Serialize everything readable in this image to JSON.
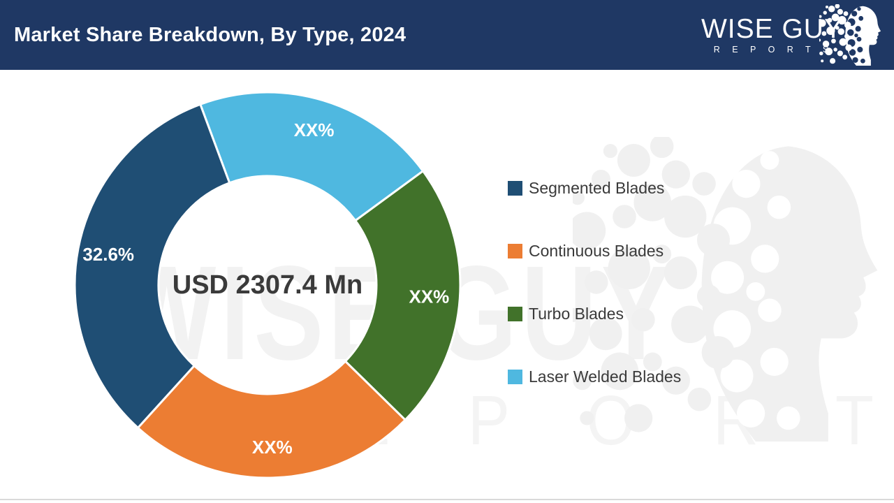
{
  "header": {
    "title": "Market Share Breakdown, By Type, 2024",
    "logo": {
      "line1": "WISE GUY",
      "line2": "R E P O R T S"
    }
  },
  "watermark": {
    "line1": "WISE GUY",
    "line2": "R E P O R T S"
  },
  "chart_data": {
    "type": "pie",
    "subtype": "donut",
    "title": "Market Share Breakdown, By Type, 2024",
    "center_label": "USD 2307.4 Mn",
    "start_angle_deg": -20.4,
    "inner_radius_ratio": 0.565,
    "legend_position": "right",
    "segments": [
      {
        "label": "Laser Welded Blades",
        "display_label": "XX%",
        "share_pct": 20.6,
        "color": "#4fb8e0"
      },
      {
        "label": "Turbo Blades",
        "display_label": "XX%",
        "share_pct": 22.4,
        "color": "#41722a"
      },
      {
        "label": "Continuous Blades",
        "display_label": "XX%",
        "share_pct": 24.4,
        "color": "#ec7d33"
      },
      {
        "label": "Segmented Blades",
        "display_label": "32.6%",
        "share_pct": 32.6,
        "color": "#1f4e74"
      }
    ],
    "legend": [
      {
        "label": "Segmented Blades",
        "color": "#1f4e74"
      },
      {
        "label": "Continuous Blades",
        "color": "#ec7d33"
      },
      {
        "label": "Turbo Blades",
        "color": "#41722a"
      },
      {
        "label": "Laser Welded Blades",
        "color": "#4fb8e0"
      }
    ]
  },
  "style_colors": {
    "header_bg": "#1f3864",
    "center_text": "#3a3a3a",
    "segment_label_text": "#ffffff",
    "watermark_gray": "#f2f2f2"
  }
}
